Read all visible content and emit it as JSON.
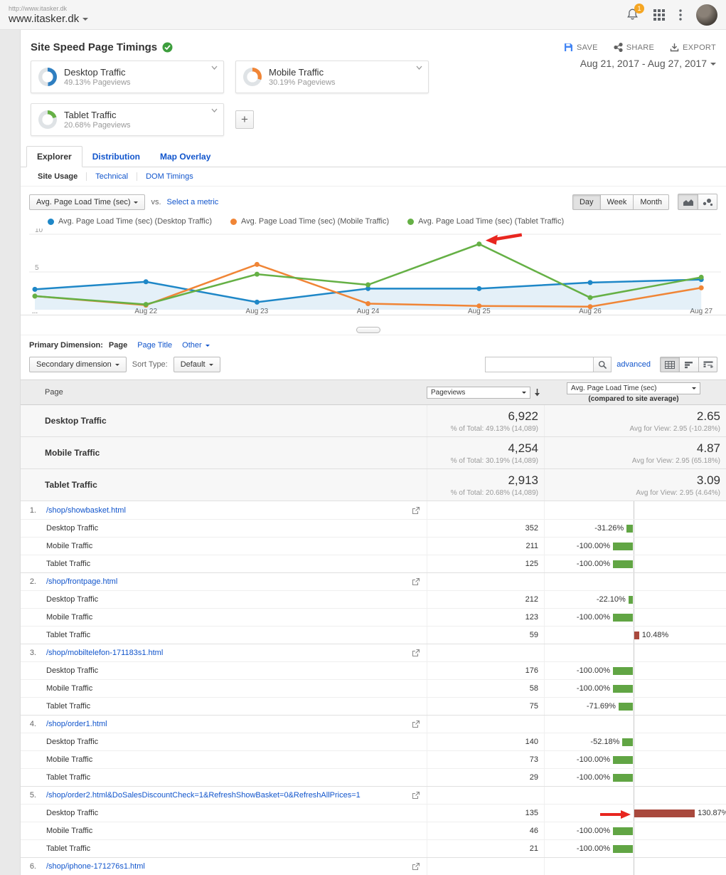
{
  "topbar": {
    "url_small": "http://www.itasker.dk",
    "account": "www.itasker.dk",
    "notification_count": "1"
  },
  "header": {
    "title": "Site Speed Page Timings",
    "save": "SAVE",
    "share": "SHARE",
    "export": "EXPORT"
  },
  "date_range": "Aug 21, 2017 - Aug 27, 2017",
  "segments": {
    "cards": [
      {
        "name": "Desktop Traffic",
        "sub": "49.13% Pageviews",
        "pct": 49.13,
        "color": "#2f7fc1"
      },
      {
        "name": "Mobile Traffic",
        "sub": "30.19% Pageviews",
        "pct": 30.19,
        "color": "#f08536"
      },
      {
        "name": "Tablet Traffic",
        "sub": "20.68% Pageviews",
        "pct": 20.68,
        "color": "#65b045"
      }
    ],
    "add_label": "+"
  },
  "tabs": {
    "items": [
      "Explorer",
      "Distribution",
      "Map Overlay"
    ]
  },
  "subtabs": {
    "items": [
      "Site Usage",
      "Technical",
      "DOM Timings"
    ]
  },
  "metric_bar": {
    "metric": "Avg. Page Load Time (sec)",
    "vs": "vs.",
    "select": "Select a metric",
    "granularity": [
      "Day",
      "Week",
      "Month"
    ]
  },
  "chart_data": {
    "type": "line",
    "x_labels": [
      "...",
      "Aug 22",
      "Aug 23",
      "Aug 24",
      "Aug 25",
      "Aug 26",
      "Aug 27"
    ],
    "ylim": [
      0,
      10
    ],
    "yticks": [
      5,
      10
    ],
    "series": [
      {
        "name": "Avg. Page Load Time (sec) (Desktop Traffic)",
        "color": "#1e87c7",
        "area": true,
        "values": [
          2.7,
          3.7,
          1.0,
          2.8,
          2.8,
          3.6,
          4.0
        ]
      },
      {
        "name": "Avg. Page Load Time (sec) (Mobile Traffic)",
        "color": "#f08536",
        "area": false,
        "values": [
          1.8,
          0.6,
          6.0,
          0.8,
          0.5,
          0.4,
          2.9
        ]
      },
      {
        "name": "Avg. Page Load Time (sec) (Tablet Traffic)",
        "color": "#65b045",
        "area": false,
        "values": [
          1.8,
          0.7,
          4.7,
          3.3,
          8.7,
          1.6,
          4.3
        ]
      }
    ],
    "annotation": {
      "type": "arrow",
      "color": "#e8261f",
      "series_index": 2,
      "point_index": 4
    }
  },
  "primary_dimension": {
    "label": "Primary Dimension:",
    "items": [
      "Page",
      "Page Title",
      "Other"
    ]
  },
  "table_toolbar": {
    "secondary": "Secondary dimension",
    "sort_label": "Sort Type:",
    "sort_value": "Default",
    "advanced": "advanced"
  },
  "table": {
    "columns": {
      "page": "Page",
      "pageviews": "Pageviews",
      "metric": "Avg. Page Load Time (sec)",
      "metric_sub": "(compared to site average)"
    },
    "summary_rows": [
      {
        "label": "Desktop Traffic",
        "pageviews": "6,922",
        "pageviews_sub": "% of Total: 49.13% (14,089)",
        "metric": "2.65",
        "metric_sub": "Avg for View: 2.95 (-10.28%)"
      },
      {
        "label": "Mobile Traffic",
        "pageviews": "4,254",
        "pageviews_sub": "% of Total: 30.19% (14,089)",
        "metric": "4.87",
        "metric_sub": "Avg for View: 2.95 (65.18%)"
      },
      {
        "label": "Tablet Traffic",
        "pageviews": "2,913",
        "pageviews_sub": "% of Total: 20.68% (14,089)",
        "metric": "3.09",
        "metric_sub": "Avg for View: 2.95 (4.64%)"
      }
    ],
    "groups": [
      {
        "index": "1.",
        "url": "/shop/showbasket.html",
        "rows": [
          {
            "label": "Desktop Traffic",
            "pageviews": "352",
            "delta_label": "-31.26%",
            "delta": -31.26
          },
          {
            "label": "Mobile Traffic",
            "pageviews": "211",
            "delta_label": "-100.00%",
            "delta": -100
          },
          {
            "label": "Tablet Traffic",
            "pageviews": "125",
            "delta_label": "-100.00%",
            "delta": -100
          }
        ]
      },
      {
        "index": "2.",
        "url": "/shop/frontpage.html",
        "rows": [
          {
            "label": "Desktop Traffic",
            "pageviews": "212",
            "delta_label": "-22.10%",
            "delta": -22.1
          },
          {
            "label": "Mobile Traffic",
            "pageviews": "123",
            "delta_label": "-100.00%",
            "delta": -100
          },
          {
            "label": "Tablet Traffic",
            "pageviews": "59",
            "delta_label": "10.48%",
            "delta": 10.48
          }
        ]
      },
      {
        "index": "3.",
        "url": "/shop/mobiltelefon-171183s1.html",
        "rows": [
          {
            "label": "Desktop Traffic",
            "pageviews": "176",
            "delta_label": "-100.00%",
            "delta": -100
          },
          {
            "label": "Mobile Traffic",
            "pageviews": "58",
            "delta_label": "-100.00%",
            "delta": -100
          },
          {
            "label": "Tablet Traffic",
            "pageviews": "75",
            "delta_label": "-71.69%",
            "delta": -71.69
          }
        ]
      },
      {
        "index": "4.",
        "url": "/shop/order1.html",
        "rows": [
          {
            "label": "Desktop Traffic",
            "pageviews": "140",
            "delta_label": "-52.18%",
            "delta": -52.18
          },
          {
            "label": "Mobile Traffic",
            "pageviews": "73",
            "delta_label": "-100.00%",
            "delta": -100
          },
          {
            "label": "Tablet Traffic",
            "pageviews": "29",
            "delta_label": "-100.00%",
            "delta": -100
          }
        ]
      },
      {
        "index": "5.",
        "url": "/shop/order2.html&DoSalesDiscountCheck=1&RefreshShowBasket=0&RefreshAllPrices=1",
        "rows": [
          {
            "label": "Desktop Traffic",
            "pageviews": "135",
            "delta_label": "130.87%",
            "delta": 130.87,
            "arrow": true
          },
          {
            "label": "Mobile Traffic",
            "pageviews": "46",
            "delta_label": "-100.00%",
            "delta": -100
          },
          {
            "label": "Tablet Traffic",
            "pageviews": "21",
            "delta_label": "-100.00%",
            "delta": -100
          }
        ]
      },
      {
        "index": "6.",
        "url": "/shop/iphone-171276s1.html",
        "rows": []
      }
    ]
  },
  "colors": {
    "positive_bar": "#a9493d",
    "negative_bar": "#61a544",
    "link": "#1155cc"
  }
}
